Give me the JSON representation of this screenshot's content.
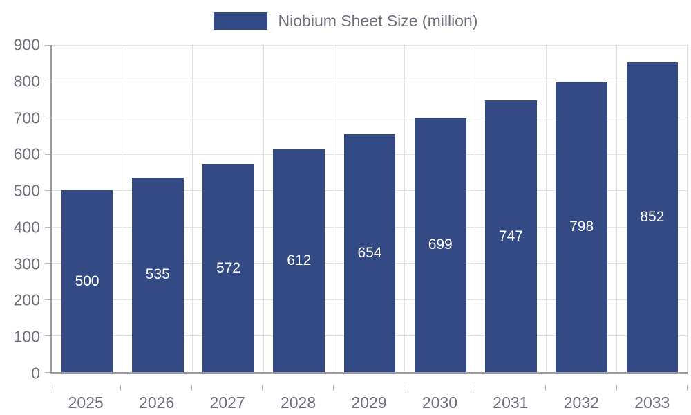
{
  "legend": {
    "label": "Niobium Sheet Size (million)",
    "swatch_color": "#344A84"
  },
  "chart_data": {
    "type": "bar",
    "categories": [
      "2025",
      "2026",
      "2027",
      "2028",
      "2029",
      "2030",
      "2031",
      "2032",
      "2033"
    ],
    "values": [
      500,
      535,
      572,
      612,
      654,
      699,
      747,
      798,
      852
    ],
    "series": [
      {
        "name": "Niobium Sheet Size (million)",
        "values": [
          500,
          535,
          572,
          612,
          654,
          699,
          747,
          798,
          852
        ]
      }
    ],
    "title": "",
    "xlabel": "",
    "ylabel": "",
    "ylim": [
      0,
      900
    ],
    "ytick_interval": 100,
    "ytick_labels": [
      "0",
      "100",
      "200",
      "300",
      "400",
      "500",
      "600",
      "700",
      "800",
      "900"
    ],
    "grid": true,
    "legend_position": "top",
    "bar_color": "#344A84",
    "value_label_color": "#ffffff",
    "axis_text_color": "#6E7079",
    "gridline_color": "#E2E2E6",
    "axis_line_color": "#9A9A9F"
  }
}
